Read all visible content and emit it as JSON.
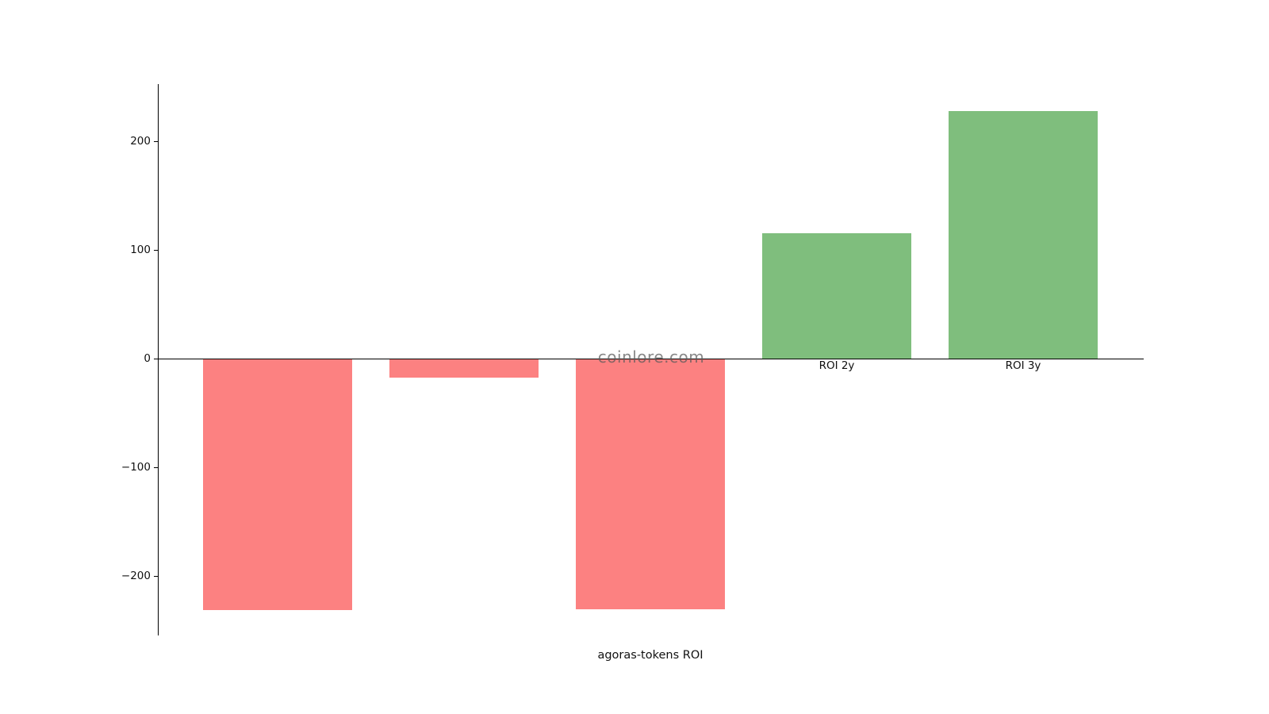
{
  "chart_data": {
    "type": "bar",
    "title": "agoras-tokens ROI",
    "watermark": "coinlore.com",
    "categories": [
      "",
      "",
      "",
      "ROI 2y",
      "ROI 3y"
    ],
    "values": [
      -231,
      -17,
      -230,
      115,
      228
    ],
    "bar_colors": [
      "#FC8181",
      "#FC8181",
      "#FC8181",
      "#7FBE7D",
      "#7FBE7D"
    ],
    "negative_color": "#FC8181",
    "positive_color": "#7FBE7D",
    "axis_color": "#000000",
    "text_color": "#111111",
    "watermark_color": "#5A5A5A",
    "xlabel": "",
    "ylabel": "",
    "ylim": [
      -255,
      251
    ],
    "yticks": [
      {
        "value": 200,
        "label": "200"
      },
      {
        "value": 100,
        "label": "100"
      },
      {
        "value": 0,
        "label": "0"
      },
      {
        "value": -100,
        "label": "−100"
      },
      {
        "value": -200,
        "label": "−200"
      }
    ],
    "grid": false,
    "legend": null
  }
}
